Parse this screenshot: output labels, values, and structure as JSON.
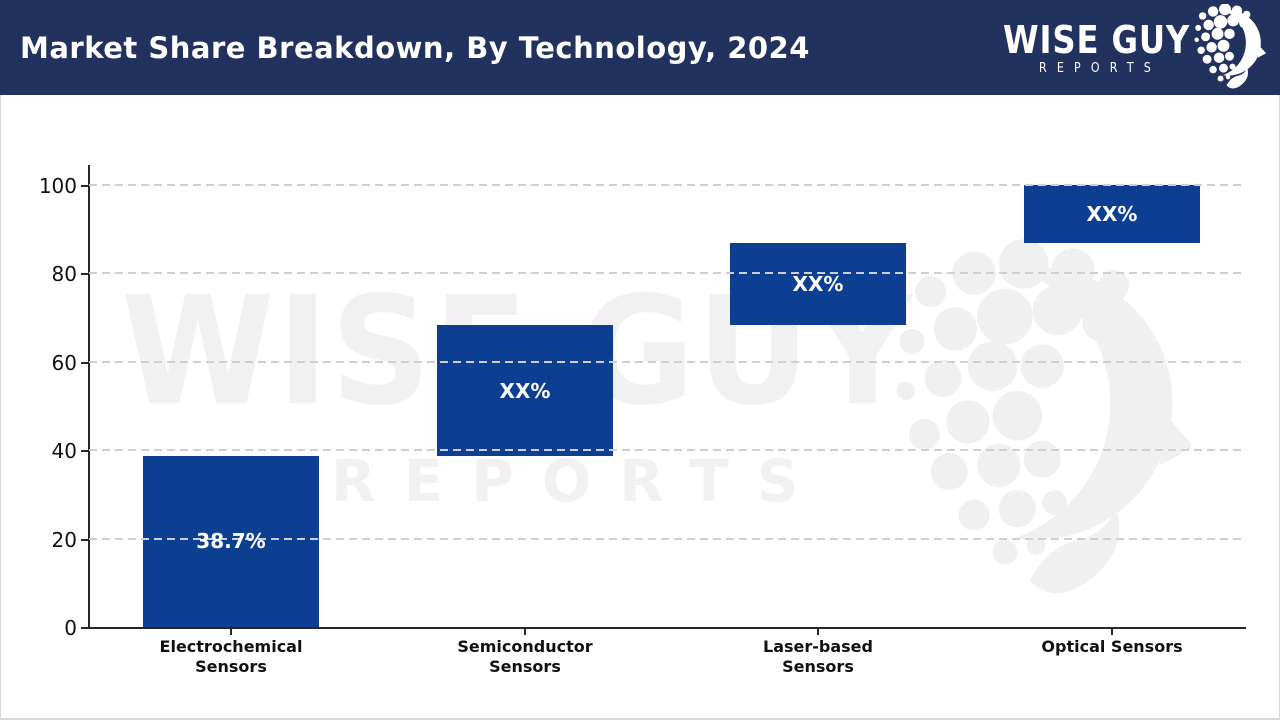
{
  "header": {
    "title": "Market Share Breakdown, By Technology, 2024",
    "logo": {
      "wordmark": "WISE GUY",
      "subtext": "REPORTS",
      "icon": "dotted-head-profile"
    },
    "bg_color": "#21325f",
    "text_color": "#ffffff"
  },
  "watermark": {
    "line1": "WISE GUY",
    "line2": "REPORTS",
    "icon": "dotted-head-profile",
    "color": "#f1f1f1"
  },
  "chart_data": {
    "type": "bar",
    "subtype": "waterfall-stacked",
    "title": "Market Share Breakdown, By Technology, 2024",
    "categories": [
      "Electrochemical Sensors",
      "Semiconductor Sensors",
      "Laser-based Sensors",
      "Optical Sensors"
    ],
    "category_lines": [
      [
        "Electrochemical",
        "Sensors"
      ],
      [
        "Semiconductor",
        "Sensors"
      ],
      [
        "Laser-based",
        "Sensors"
      ],
      [
        "Optical Sensors"
      ]
    ],
    "bar_labels": [
      "38.7%",
      "XX%",
      "XX%",
      "XX%"
    ],
    "segments": [
      {
        "start": 0,
        "end": 38.7
      },
      {
        "start": 38.7,
        "end": 68.3
      },
      {
        "start": 68.3,
        "end": 86.9
      },
      {
        "start": 86.9,
        "end": 100
      }
    ],
    "values": [
      38.7,
      29.6,
      18.6,
      13.1
    ],
    "xlabel": "",
    "ylabel": "",
    "ylim": [
      0,
      104.5
    ],
    "yticks": [
      0,
      20,
      40,
      60,
      80,
      100
    ],
    "grid": {
      "axis": "y",
      "style": "dashed",
      "color": "#cfcfcf",
      "drawn_over_bars": true
    },
    "legend": "none",
    "bar_color": "#0c3e92",
    "bar_label_color": "#ffffff",
    "axis_color": "#262626",
    "tick_label_color": "#111111"
  }
}
